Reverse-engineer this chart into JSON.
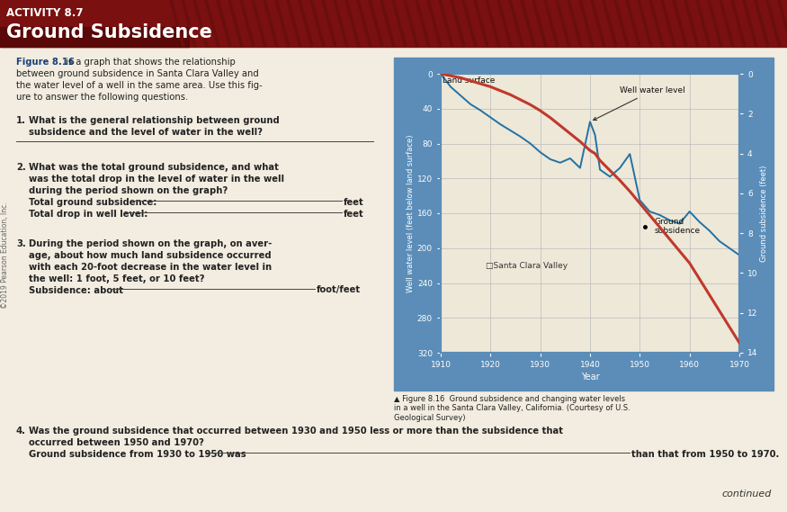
{
  "title_activity": "ACTIVITY 8.7",
  "title_main": "Ground Subsidence",
  "chart_bg": "#5b8db8",
  "plot_bg": "#ede8d8",
  "grid_color": "#bbbbbb",
  "years": [
    1910,
    1912,
    1914,
    1916,
    1918,
    1920,
    1922,
    1924,
    1926,
    1928,
    1930,
    1932,
    1934,
    1936,
    1938,
    1940,
    1941,
    1942,
    1944,
    1946,
    1948,
    1950,
    1952,
    1954,
    1956,
    1958,
    1960,
    1962,
    1964,
    1966,
    1968,
    1970
  ],
  "well_water": [
    0,
    15,
    25,
    35,
    42,
    50,
    58,
    65,
    72,
    80,
    90,
    98,
    102,
    97,
    108,
    55,
    70,
    110,
    118,
    108,
    92,
    145,
    158,
    162,
    168,
    172,
    158,
    170,
    180,
    192,
    200,
    208
  ],
  "subsidence": [
    0,
    0.1,
    0.2,
    0.35,
    0.5,
    0.65,
    0.85,
    1.05,
    1.3,
    1.55,
    1.85,
    2.2,
    2.6,
    3.0,
    3.4,
    3.85,
    4.0,
    4.35,
    4.85,
    5.35,
    5.9,
    6.5,
    7.1,
    7.7,
    8.3,
    8.9,
    9.5,
    10.3,
    11.1,
    11.9,
    12.7,
    13.5
  ],
  "well_color": "#2471a3",
  "subsidence_color": "#c0392b",
  "ylabel_left": "Well water level (feet below land surface)",
  "ylabel_right": "Ground subsidence (feet)",
  "xlabel": "Year",
  "yticks_left": [
    0,
    40,
    80,
    120,
    160,
    200,
    240,
    280,
    320
  ],
  "yticks_right": [
    0,
    2,
    4,
    6,
    8,
    10,
    12,
    14
  ],
  "xticks": [
    1910,
    1920,
    1930,
    1940,
    1950,
    1960,
    1970
  ],
  "header_bg": "#7a1010",
  "page_bg": "#f2ede0",
  "copyright": "©2019 Pearson Education, Inc."
}
